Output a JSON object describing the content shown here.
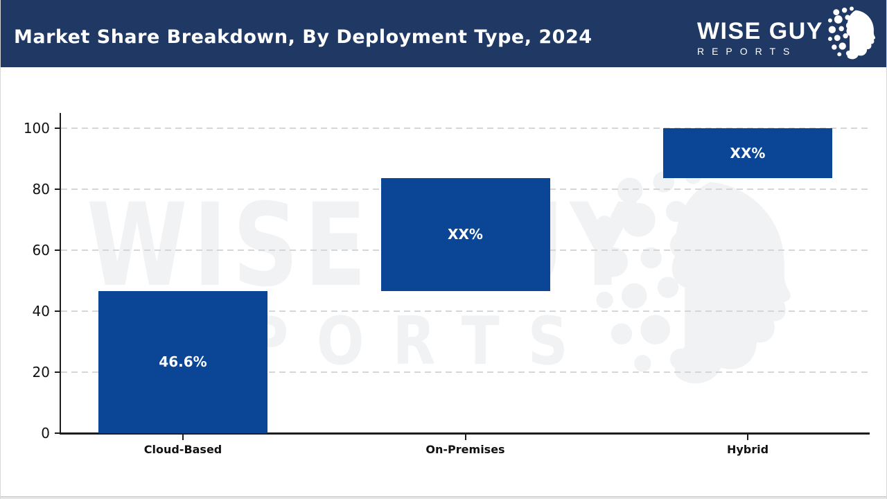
{
  "header": {
    "title": "Market Share Breakdown, By Deployment Type, 2024",
    "logo": {
      "name": "WISE GUY",
      "subname": "REPORTS"
    }
  },
  "watermark": {
    "line1": "WISE GUY",
    "line2": "REPORTS"
  },
  "chart_data": {
    "type": "bar",
    "subtype": "waterfall-breakdown",
    "title": "Market Share Breakdown, By Deployment Type, 2024",
    "categories": [
      "Cloud-Based",
      "On-Premises",
      "Hybrid"
    ],
    "segments": [
      {
        "category": "Cloud-Based",
        "start": 0,
        "end": 46.6,
        "label": "46.6%"
      },
      {
        "category": "On-Premises",
        "start": 46.6,
        "end": 83.7,
        "label": "XX%"
      },
      {
        "category": "Hybrid",
        "start": 83.7,
        "end": 100,
        "label": "XX%"
      }
    ],
    "y_ticks": [
      0,
      20,
      40,
      60,
      80,
      100
    ],
    "ylim": [
      0,
      100
    ],
    "xlabel": "",
    "ylabel": "",
    "grid": true,
    "grid_style": "dashed",
    "legend": "none",
    "bar_color": "#0b4596",
    "bar_label_color": "#ffffff"
  },
  "colors": {
    "header_bg": "#1f3864",
    "header_text": "#ffffff",
    "bar": "#0b4596",
    "gridline": "#d6d6d6",
    "axis": "#1c1c1c",
    "tick_text": "#111111",
    "watermark": "#f1f2f4",
    "page_bg": "#ffffff"
  }
}
